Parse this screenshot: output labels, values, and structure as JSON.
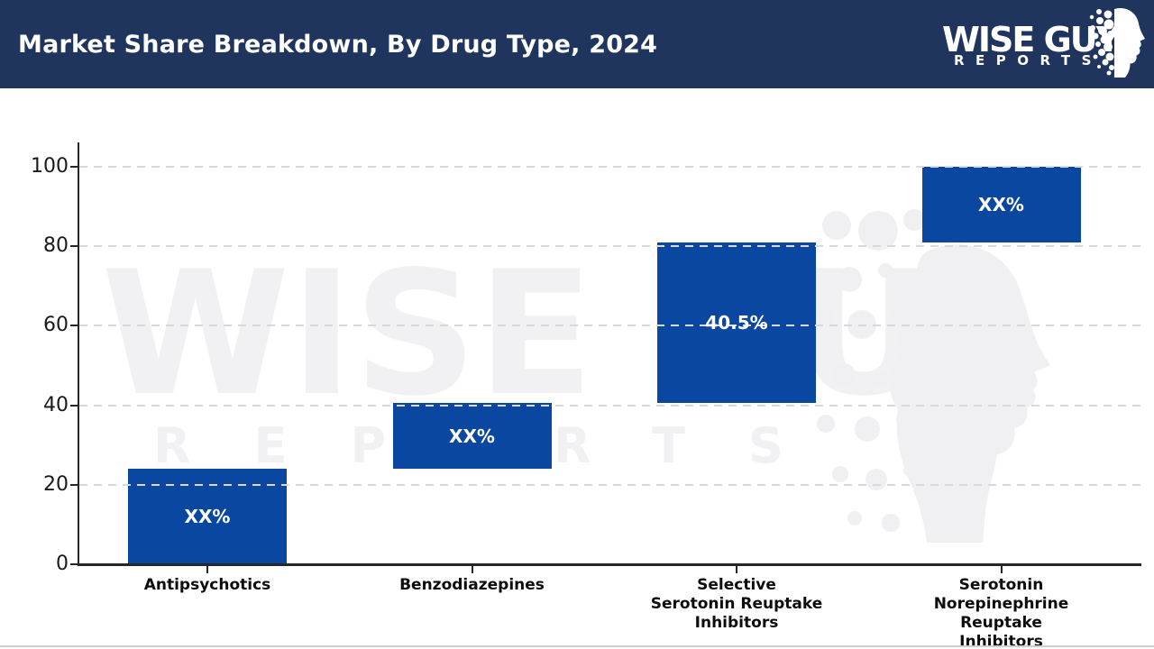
{
  "header": {
    "title": "Market Share Breakdown, By Drug Type, 2024",
    "bg_color": "#1f355e",
    "logo": {
      "wordmark": "WISE GUY",
      "subline": "REPORTS",
      "head_icon": "dotted-head-profile"
    }
  },
  "watermark": {
    "text": "WISE GU",
    "subline": "REPORTS",
    "color": "#f1f1f3"
  },
  "chart_data": {
    "type": "bar",
    "subtype": "waterfall",
    "title": "Market Share Breakdown, By Drug Type, 2024",
    "categories": [
      [
        "Antipsychotics"
      ],
      [
        "Benzodiazepines"
      ],
      [
        "Selective",
        "Serotonin Reuptake",
        "Inhibitors"
      ],
      [
        "Serotonin",
        "Norepinephrine",
        "Reuptake",
        "Inhibitors"
      ]
    ],
    "segments": [
      [
        0,
        24
      ],
      [
        24,
        40.5
      ],
      [
        40.5,
        81
      ],
      [
        81,
        100
      ]
    ],
    "bar_labels": [
      "XX%",
      "XX%",
      "40.5%",
      "XX%"
    ],
    "ylim": [
      0,
      100
    ],
    "yticks": [
      0,
      20,
      40,
      60,
      80,
      100
    ],
    "grid": "dashed-horizontal",
    "legend": "none",
    "bar_color": "#0a47a1",
    "gridline_color": "#d9d9d9",
    "axis_color": "#262626"
  }
}
